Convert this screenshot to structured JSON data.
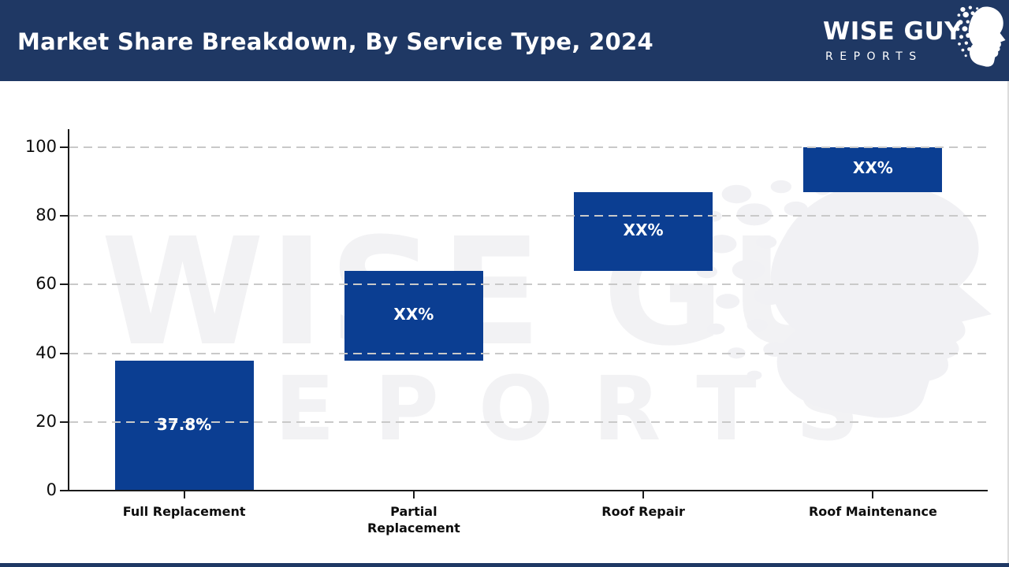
{
  "header": {
    "title": "Market Share Breakdown, By Service Type, 2024",
    "logo": {
      "name": "WISE GUY",
      "tagline": "REPORTS"
    }
  },
  "watermark": {
    "line1": "WISE GUY",
    "line2": "REPORTS"
  },
  "chart_data": {
    "type": "bar",
    "subtype": "waterfall",
    "title": "Market Share Breakdown, By Service Type, 2024",
    "categories": [
      "Full Replacement",
      "Partial Replacement",
      "Roof Repair",
      "Roof Maintenance"
    ],
    "category_tick_lines": [
      [
        "Full Replacement"
      ],
      [
        "Partial",
        "Replacement"
      ],
      [
        "Roof Repair"
      ],
      [
        "Roof Maintenance"
      ]
    ],
    "segments": [
      {
        "category": "Full Replacement",
        "start": 0,
        "end": 37.8,
        "label": "37.8%"
      },
      {
        "category": "Partial Replacement",
        "start": 37.8,
        "end": 64,
        "label": "XX%"
      },
      {
        "category": "Roof Repair",
        "start": 64,
        "end": 87,
        "label": "XX%"
      },
      {
        "category": "Roof Maintenance",
        "start": 87,
        "end": 100,
        "label": "XX%"
      }
    ],
    "xlabel": "",
    "ylabel": "",
    "ylim": [
      0,
      105
    ],
    "yticks": [
      0,
      20,
      40,
      60,
      80,
      100
    ],
    "grid": {
      "axis": "y",
      "style": "dashed",
      "drawn_over_bars": true
    },
    "legend_position": "none",
    "colors": {
      "bar": "#0b3e92",
      "grid": "#c9c9c9",
      "axis": "#1a1a1a",
      "bar_label_text": "#ffffff",
      "header_bg": "#1f3864",
      "watermark": "#f2f2f4"
    }
  }
}
